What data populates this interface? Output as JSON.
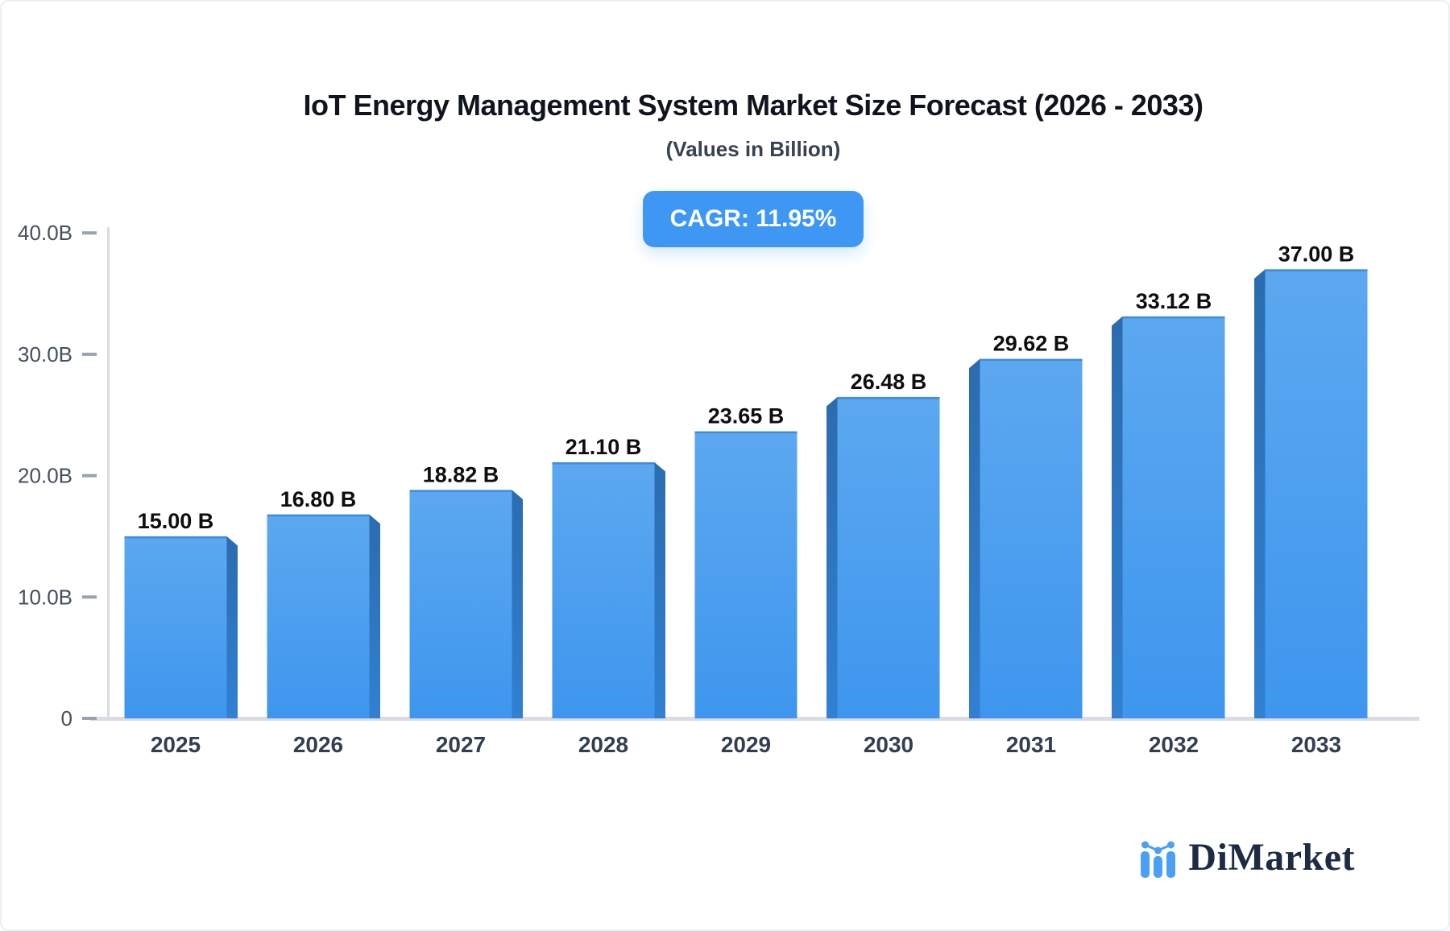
{
  "header": {
    "title": "IoT Energy Management System Market Size Forecast (2026 - 2033)",
    "subtitle": "(Values in Billion)",
    "cagr_badge": "CAGR: 11.95%"
  },
  "brand": {
    "name": "DiMarket",
    "icon": "bar-chart-logo-icon",
    "icon_color": "#4aa0f5",
    "text_color": "#1d2b45"
  },
  "colors": {
    "badge_bg": "#3e97f2",
    "bar_face_top": "#5ca8f0",
    "bar_face_bottom": "#3e96ee",
    "bar_side_top": "#2b6cae",
    "bar_side_bottom": "#3180d2",
    "bar_top_edge": "#3a87d8",
    "axis_line": "#d9dde3",
    "tick_dash": "#9aa2ad",
    "tick_label": "#454f5e",
    "year_label": "#333f51",
    "value_label": "#0e0e10"
  },
  "chart_data": {
    "type": "bar",
    "title": "IoT Energy Management System Market Size Forecast (2026 - 2033)",
    "subtitle": "(Values in Billion)",
    "cagr": "11.95%",
    "categories": [
      "2025",
      "2026",
      "2027",
      "2028",
      "2029",
      "2030",
      "2031",
      "2032",
      "2033"
    ],
    "values": [
      15.0,
      16.8,
      18.82,
      21.1,
      23.65,
      26.48,
      29.62,
      33.12,
      37.0
    ],
    "bar_labels": [
      "15.00 B",
      "16.80 B",
      "18.82 B",
      "21.10 B",
      "23.65 B",
      "26.48 B",
      "29.62 B",
      "33.12 B",
      "37.00 B"
    ],
    "xlabel": "",
    "ylabel": "",
    "ylim": [
      0,
      40
    ],
    "yticks": [
      0,
      10,
      20,
      30,
      40
    ],
    "ytick_labels": [
      "0",
      "10.0B",
      "20.0B",
      "30.0B",
      "40.0B"
    ],
    "grid": false,
    "legend": null,
    "style": "3d-bars-center-perspective"
  }
}
